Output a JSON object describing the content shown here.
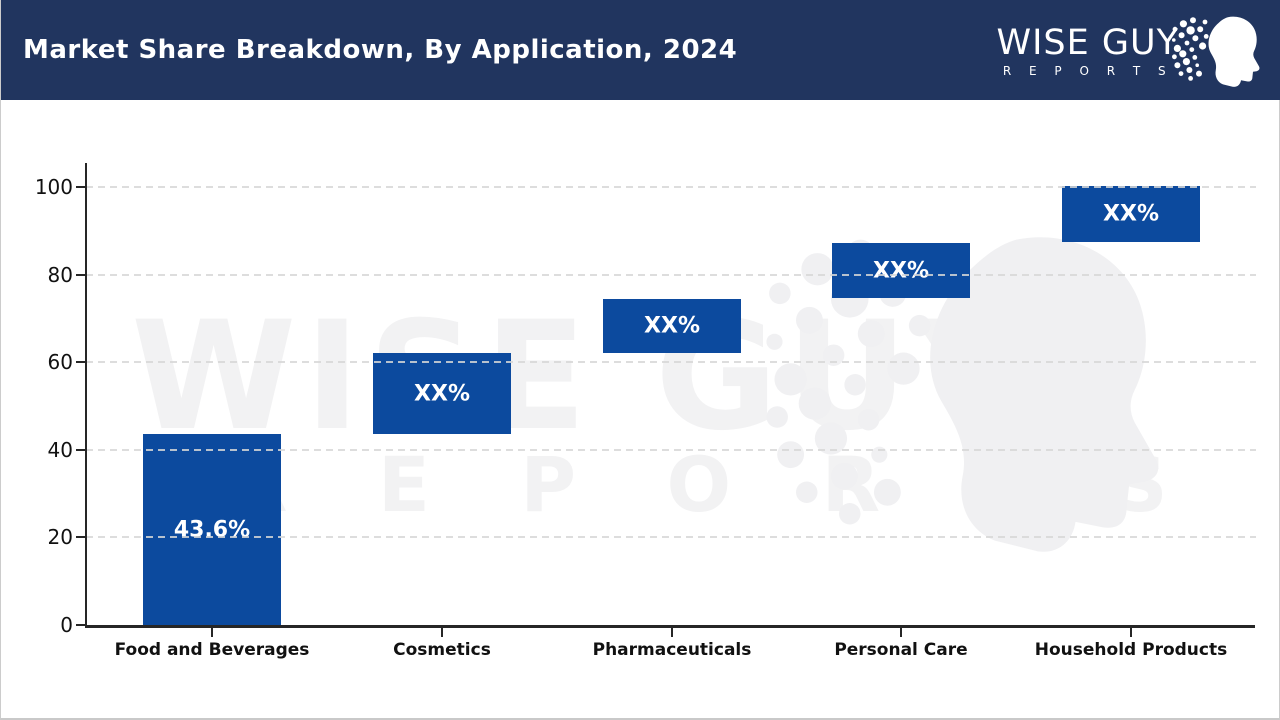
{
  "header": {
    "title": "Market Share Breakdown, By Application, 2024",
    "logo": {
      "brand": "WISE GUY",
      "tagline": "R E P O R T S"
    }
  },
  "watermark": {
    "brand": "WISE GUY",
    "tagline": "R E P O R T S"
  },
  "colors": {
    "header_bg": "#21355F",
    "bar_blue": "#0C4A9E",
    "grid": "#D7D7D7",
    "axis": "#262626",
    "bar_label": "#FFFFFF",
    "watermark": "#F2F2F3"
  },
  "chart_data": {
    "type": "bar",
    "variant": "waterfall",
    "title": "Market Share Breakdown, By Application, 2024",
    "categories": [
      "Food and Beverages",
      "Cosmetics",
      "Pharmaceuticals",
      "Personal Care",
      "Household Products"
    ],
    "bars": [
      {
        "category": "Food and Beverages",
        "label": "43.6%",
        "start": 0,
        "end": 43.6
      },
      {
        "category": "Cosmetics",
        "label": "XX%",
        "start": 43.6,
        "end": 62.1
      },
      {
        "category": "Pharmaceuticals",
        "label": "XX%",
        "start": 62.1,
        "end": 74.4
      },
      {
        "category": "Personal Care",
        "label": "XX%",
        "start": 74.6,
        "end": 87.2
      },
      {
        "category": "Household Products",
        "label": "XX%",
        "start": 87.4,
        "end": 100.2
      }
    ],
    "xlabel": "",
    "ylabel": "",
    "yticks": [
      0,
      20,
      40,
      60,
      80,
      100
    ],
    "ylim": [
      0,
      105
    ],
    "grid": "horizontal-dashed",
    "legend": null
  }
}
